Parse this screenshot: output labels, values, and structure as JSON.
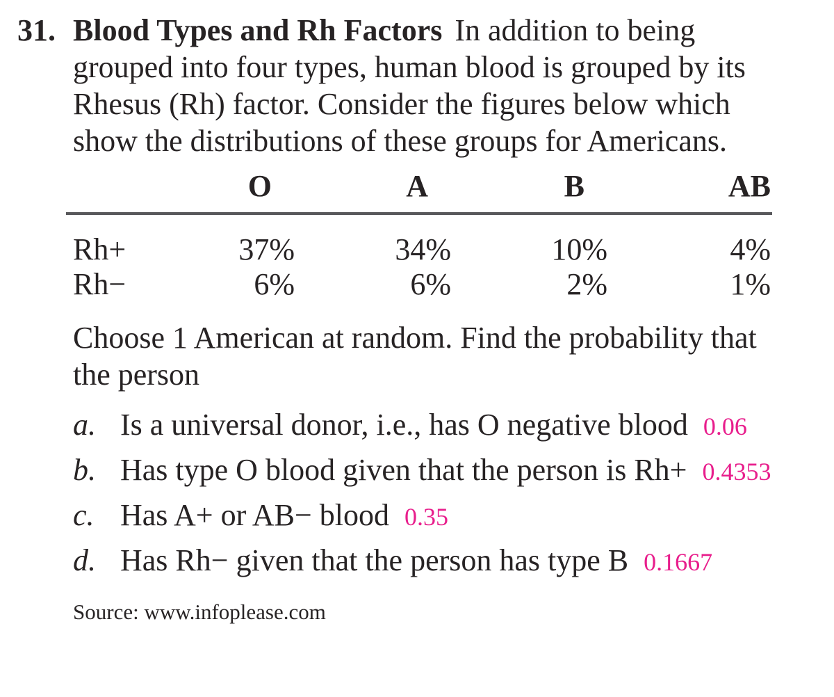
{
  "problem": {
    "number": "31.",
    "title": "Blood Types and Rh Factors",
    "intro_lines": [
      "In addition to being",
      "grouped into four types, human blood is grouped by its",
      "Rhesus (Rh) factor. Consider the figures below which",
      "show the distributions of these groups for Americans."
    ],
    "table": {
      "columns": [
        "O",
        "A",
        "B",
        "AB"
      ],
      "rows": [
        {
          "label": "Rh+",
          "values": [
            "37%",
            "34%",
            "10%",
            "4%"
          ]
        },
        {
          "label": "Rh−",
          "values": [
            "6%",
            "6%",
            "2%",
            "1%"
          ]
        }
      ]
    },
    "prompt_lines": [
      "Choose 1 American at random. Find the probability that",
      "the person"
    ],
    "parts": [
      {
        "letter": "a.",
        "text": "Is a universal donor, i.e., has O negative blood",
        "answer": "0.06"
      },
      {
        "letter": "b.",
        "text": "Has type O blood given that the person is Rh+",
        "answer": "0.4353"
      },
      {
        "letter": "c.",
        "text": "Has A+ or AB− blood",
        "answer": "0.35"
      },
      {
        "letter": "d.",
        "text": "Has Rh− given that the person has type B",
        "answer": "0.1667"
      }
    ],
    "source": "Source: www.infoplease.com"
  },
  "colors": {
    "answer_accent": "#e81e8c",
    "text": "#272324",
    "table_rule": "#58585b",
    "background": "#ffffff"
  }
}
